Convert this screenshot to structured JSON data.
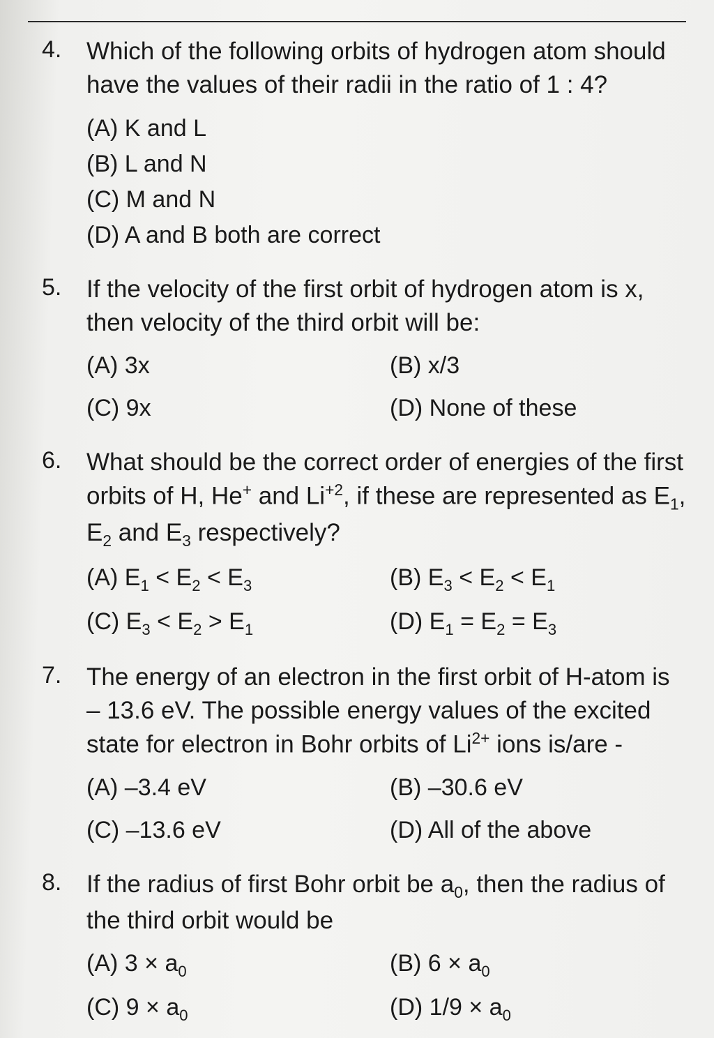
{
  "questions": [
    {
      "number": "4.",
      "text_html": "Which of the following orbits of hydrogen atom should have the values of their radii in the ratio of 1 : 4?",
      "layout": "list",
      "options": [
        {
          "label": "(A)",
          "html": "K and L"
        },
        {
          "label": "(B)",
          "html": "L and N"
        },
        {
          "label": "(C)",
          "html": "M and N"
        },
        {
          "label": "(D)",
          "html": "A and B both are correct"
        }
      ]
    },
    {
      "number": "5.",
      "text_html": "If the velocity of the first orbit of hydrogen atom is x, then velocity of the third orbit will be:",
      "layout": "grid",
      "options": [
        {
          "label": "(A)",
          "html": "3x"
        },
        {
          "label": "(B)",
          "html": "x/3"
        },
        {
          "label": "(C)",
          "html": "9x"
        },
        {
          "label": "(D)",
          "html": "None of these"
        }
      ]
    },
    {
      "number": "6.",
      "text_html": "What should be the correct order of energies of the first orbits of H, He<sup>+</sup> and  Li<sup>+2</sup>, if these are represented as E<sub>1</sub>, E<sub>2</sub> and E<sub>3</sub> respectively?",
      "layout": "grid",
      "options": [
        {
          "label": "(A)",
          "html": "E<sub>1</sub> &lt; E<sub>2</sub> &lt; E<sub>3</sub>"
        },
        {
          "label": "(B)",
          "html": "E<sub>3</sub> &lt; E<sub>2</sub> &lt; E<sub>1</sub>"
        },
        {
          "label": "(C)",
          "html": "E<sub>3</sub> &lt; E<sub>2</sub> &gt; E<sub>1</sub>"
        },
        {
          "label": "(D)",
          "html": "E<sub>1</sub> = E<sub>2</sub> = E<sub>3</sub>"
        }
      ]
    },
    {
      "number": "7.",
      "text_html": "The energy of an electron in the first orbit of H-atom is – 13.6 eV. The possible energy values of the excited state for electron in Bohr orbits of Li<sup>2+</sup> ions is/are -",
      "layout": "grid",
      "options": [
        {
          "label": "(A)",
          "html": "–3.4 eV"
        },
        {
          "label": "(B)",
          "html": "–30.6 eV"
        },
        {
          "label": "(C)",
          "html": "–13.6 eV"
        },
        {
          "label": "(D)",
          "html": "All of the above"
        }
      ]
    },
    {
      "number": "8.",
      "text_html": "If the radius of first Bohr orbit be a<sub>0</sub>, then the radius of the third orbit would be",
      "layout": "grid",
      "options": [
        {
          "label": "(A)",
          "html": "3 × a<sub>0</sub>"
        },
        {
          "label": "(B)",
          "html": "6 × a<sub>0</sub>"
        },
        {
          "label": "(C)",
          "html": "9 × a<sub>0</sub>"
        },
        {
          "label": "(D)",
          "html": "1/9 × a<sub>0</sub>"
        }
      ]
    }
  ]
}
